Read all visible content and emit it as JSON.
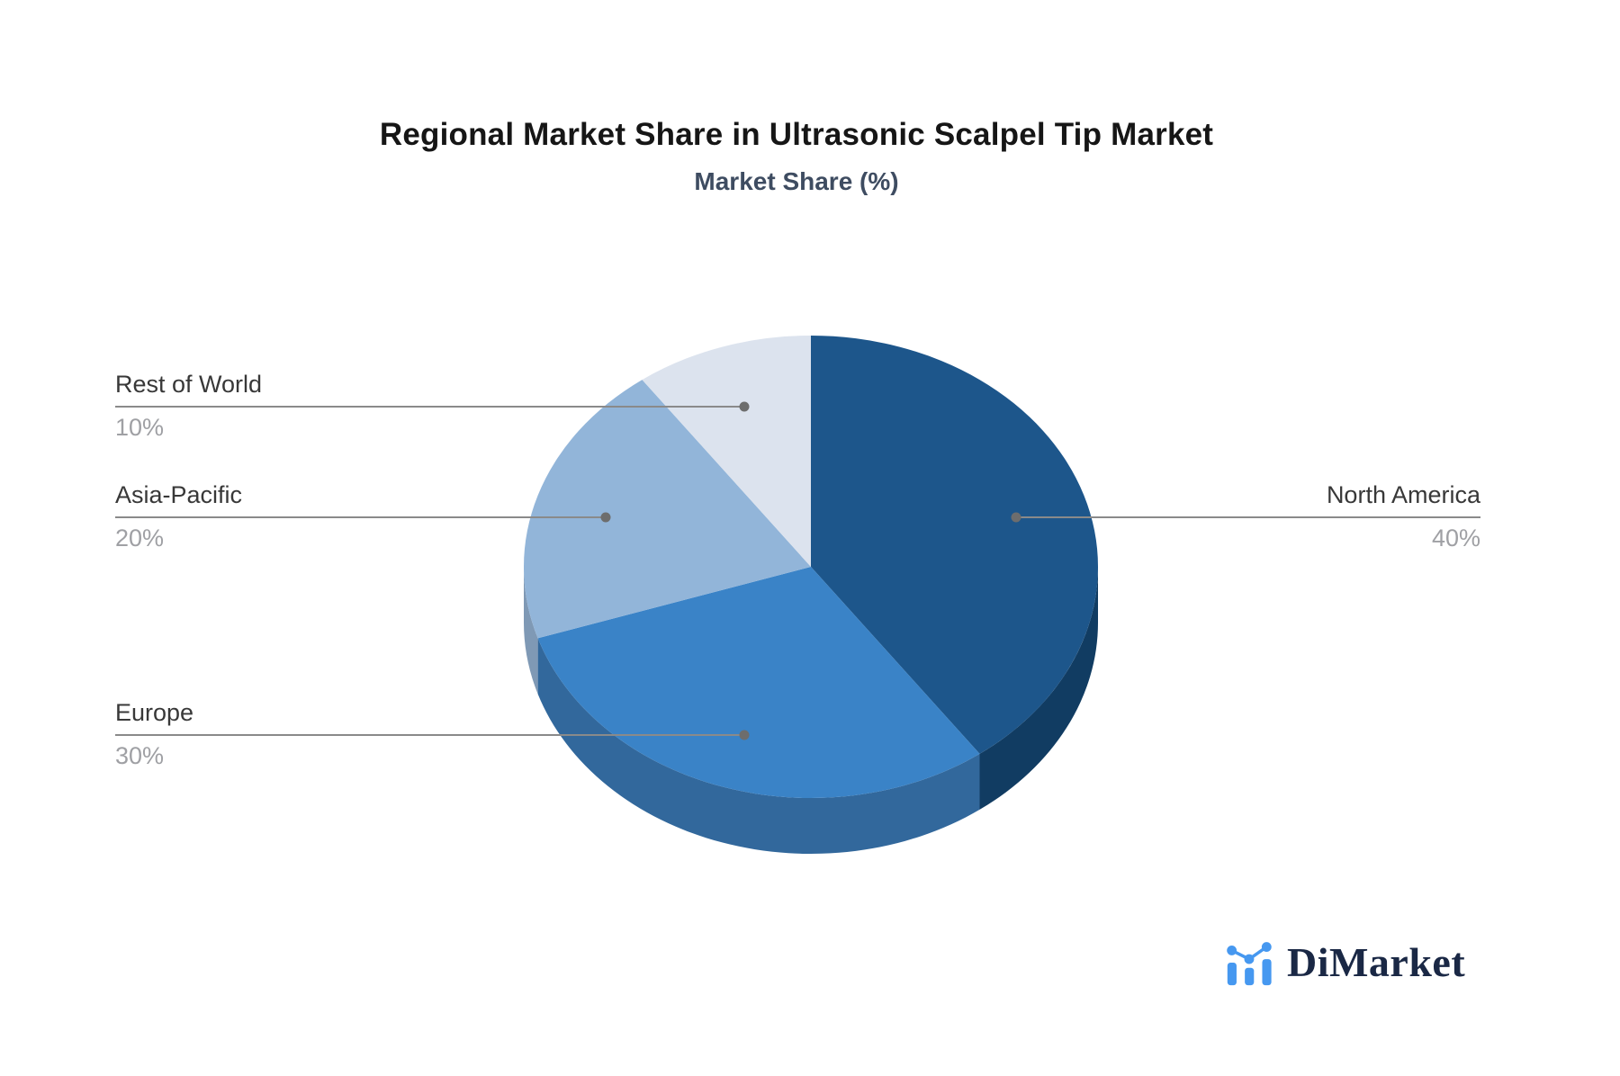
{
  "header": {
    "title": "Regional Market Share in Ultrasonic Scalpel Tip Market",
    "subtitle": "Market Share (%)"
  },
  "logo": {
    "text": "DiMarket",
    "icon": "bar-chart-with-trend-dots-icon",
    "icon_color": "#4698f0",
    "text_color": "#1a2845"
  },
  "colors": {
    "background": "#ffffff",
    "title_text": "#161616",
    "subtitle_text": "#3e4c61",
    "label_text": "#383838",
    "value_text": "#9fa0a4",
    "leader_line": "#8a8a8a",
    "leader_dot": "#6d6d6d"
  },
  "chart_data": {
    "type": "pie",
    "title": "Regional Market Share in Ultrasonic Scalpel Tip Market",
    "subtitle": "Market Share (%)",
    "unit": "%",
    "effect": "3d",
    "start_angle_deg": 0,
    "direction": "clockwise",
    "legend_position": "callout-labels",
    "slices": [
      {
        "label": "North America",
        "value": 40,
        "display": "40%",
        "color": "#1d568b",
        "side_color": "#113c62",
        "label_side": "right"
      },
      {
        "label": "Europe",
        "value": 30,
        "display": "30%",
        "color": "#3a83c7",
        "side_color": "#32689c",
        "label_side": "left"
      },
      {
        "label": "Asia-Pacific",
        "value": 20,
        "display": "20%",
        "color": "#92b5d9",
        "side_color": "#7f99b5",
        "label_side": "left"
      },
      {
        "label": "Rest of World",
        "value": 10,
        "display": "10%",
        "color": "#dce3ee",
        "side_color": "#b8c3d4",
        "label_side": "left"
      }
    ]
  }
}
